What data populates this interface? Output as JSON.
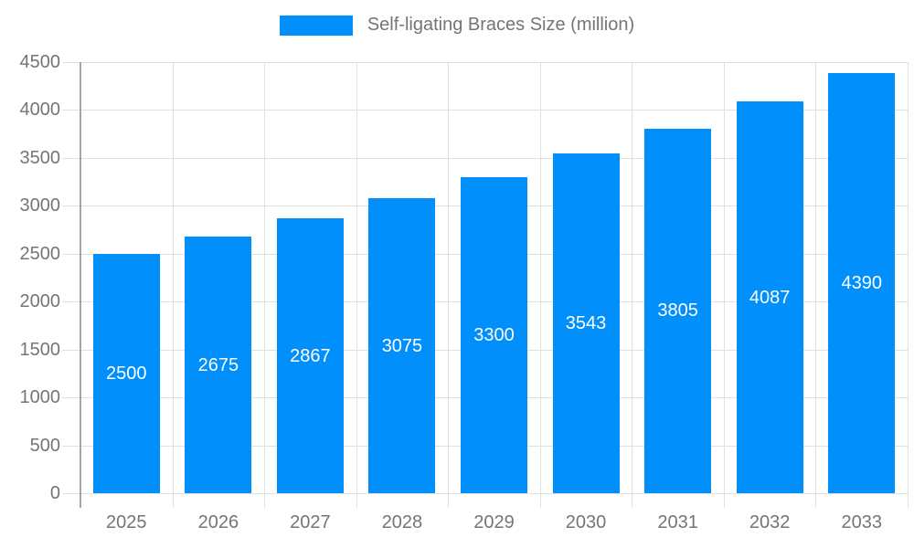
{
  "chart_data": {
    "type": "bar",
    "title": "Self-ligating Braces Size (million)",
    "series_name": "Self-ligating Braces Size (million)",
    "categories": [
      "2025",
      "2026",
      "2027",
      "2028",
      "2029",
      "2030",
      "2031",
      "2032",
      "2033"
    ],
    "values": [
      2500,
      2675,
      2867,
      3075,
      3300,
      3543,
      3805,
      4087,
      4390
    ],
    "ylim": [
      0,
      4500
    ],
    "ytick_step": 500,
    "y_tick_labels": [
      "0",
      "500",
      "1000",
      "1500",
      "2000",
      "2500",
      "3000",
      "3500",
      "4000",
      "4500"
    ],
    "xlabel": "",
    "ylabel": "",
    "grid": true,
    "legend_position": "top",
    "bar_color": "#008FFB",
    "data_label_color": "#ffffff",
    "axis_text_color": "#757575",
    "grid_color": "#e0e0e0",
    "axis_line_color": "#a6a6a6",
    "background_color": "#ffffff"
  }
}
